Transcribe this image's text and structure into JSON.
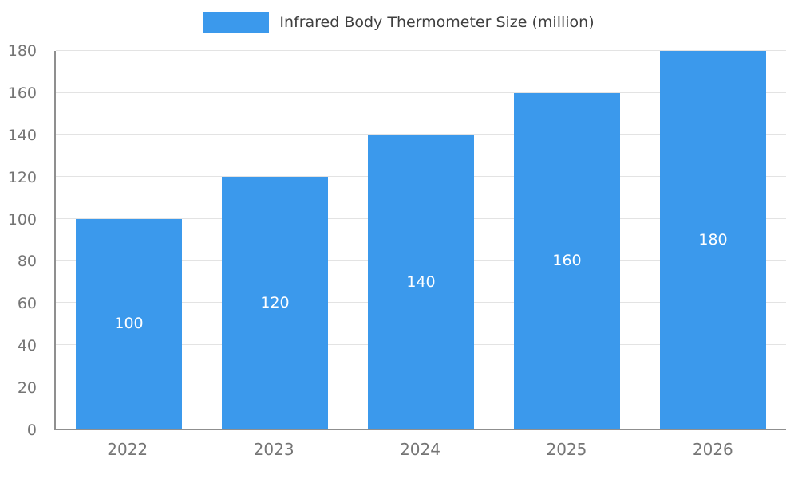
{
  "chart_data": {
    "type": "bar",
    "title": "Infrared Body Thermometer Size (million)",
    "categories": [
      "2022",
      "2023",
      "2024",
      "2025",
      "2026"
    ],
    "values": [
      100,
      120,
      140,
      160,
      180
    ],
    "data_labels": [
      "100",
      "120",
      "140",
      "160",
      "180"
    ],
    "xlabel": "",
    "ylabel": "",
    "ylim": [
      0,
      180
    ],
    "yticks": [
      0,
      20,
      40,
      60,
      80,
      100,
      120,
      140,
      160,
      180
    ],
    "legend_position": "top-center",
    "grid": true,
    "colors": {
      "bar": "#3B99EC",
      "data_label_text": "#ffffff",
      "axis_text": "#757575",
      "legend_text": "#3f3f3f",
      "grid_line": "#e3e3e3",
      "axis_line": "#8f8f8f"
    }
  }
}
